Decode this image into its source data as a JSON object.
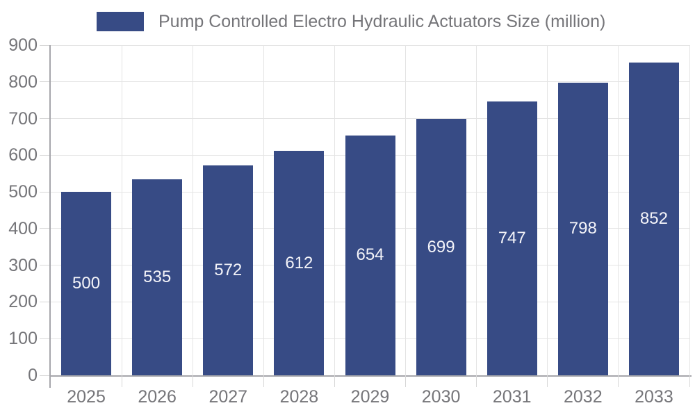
{
  "chart_data": {
    "type": "bar",
    "title": "",
    "legend_label": "Pump Controlled Electro Hydraulic Actuators Size (million)",
    "legend_position": "top",
    "categories": [
      "2025",
      "2026",
      "2027",
      "2028",
      "2029",
      "2030",
      "2031",
      "2032",
      "2033"
    ],
    "series": [
      {
        "name": "Pump Controlled Electro Hydraulic Actuators Size (million)",
        "values": [
          500,
          535,
          572,
          612,
          654,
          699,
          747,
          798,
          852
        ]
      }
    ],
    "xlabel": "",
    "ylabel": "",
    "ylim": [
      0,
      900
    ],
    "ytick_interval": 100,
    "ytick_labels": [
      "0",
      "100",
      "200",
      "300",
      "400",
      "500",
      "600",
      "700",
      "800",
      "900"
    ],
    "grid": true,
    "value_labels_shown": true,
    "colors": {
      "bar": "#374b85",
      "value_label": "#f4f4f9",
      "axis_label": "#757579",
      "legend_label": "#757579",
      "gridline": "#e4e4e4",
      "tick": "#d7d7d7",
      "axis_line": "#a6a6ab",
      "background": "#ffffff"
    }
  }
}
